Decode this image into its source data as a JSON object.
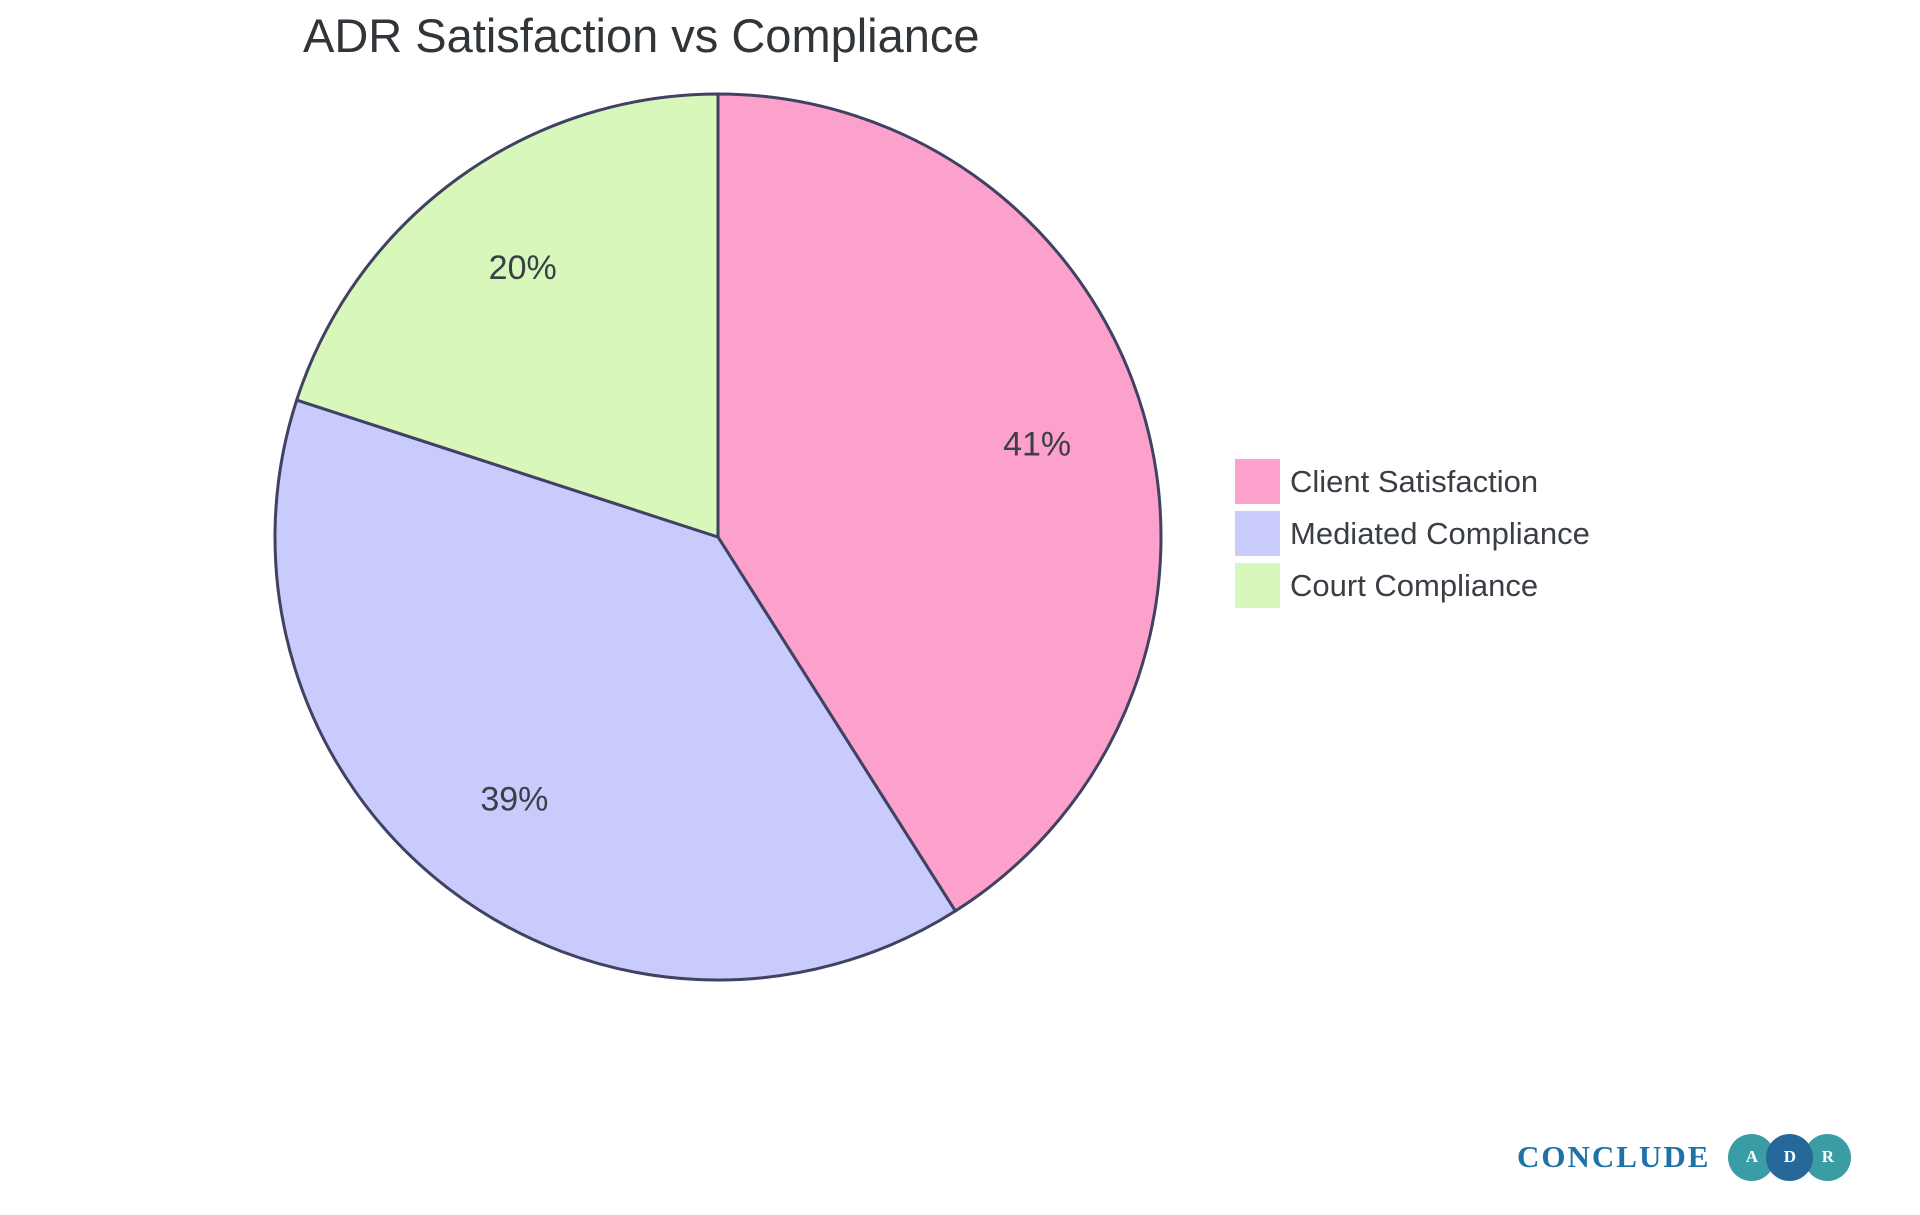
{
  "chart_data": {
    "type": "pie",
    "title": "ADR Satisfaction vs Compliance",
    "title_color": "#30353a",
    "slices": [
      {
        "label": "Client Satisfaction",
        "value": 41,
        "display": "41%",
        "color": "#FCA0CC"
      },
      {
        "label": "Mediated Compliance",
        "value": 39,
        "display": "39%",
        "color": "#C8CBFB"
      },
      {
        "label": "Court Compliance",
        "value": 20,
        "display": "20%",
        "color": "#D7F7BB"
      }
    ],
    "start_angle_deg": 0,
    "direction": "clockwise",
    "slice_border_color": "#414163",
    "slice_border_width": 3,
    "label_color": "#3b3f46",
    "label_radius_ratio": 0.75,
    "legend_position": "right",
    "legend_text_color": "#3a3e45",
    "background": "#ffffff"
  },
  "branding": {
    "wordmark": "CONCLUDE",
    "wordmark_color": "#1f72a8",
    "badge_letter_color": "#ffffff",
    "badges": [
      {
        "letter": "A",
        "color": "#3a9ca4",
        "front": false
      },
      {
        "letter": "D",
        "color": "#26689a",
        "front": true
      },
      {
        "letter": "R",
        "color": "#3a9ca4",
        "front": false
      }
    ]
  }
}
